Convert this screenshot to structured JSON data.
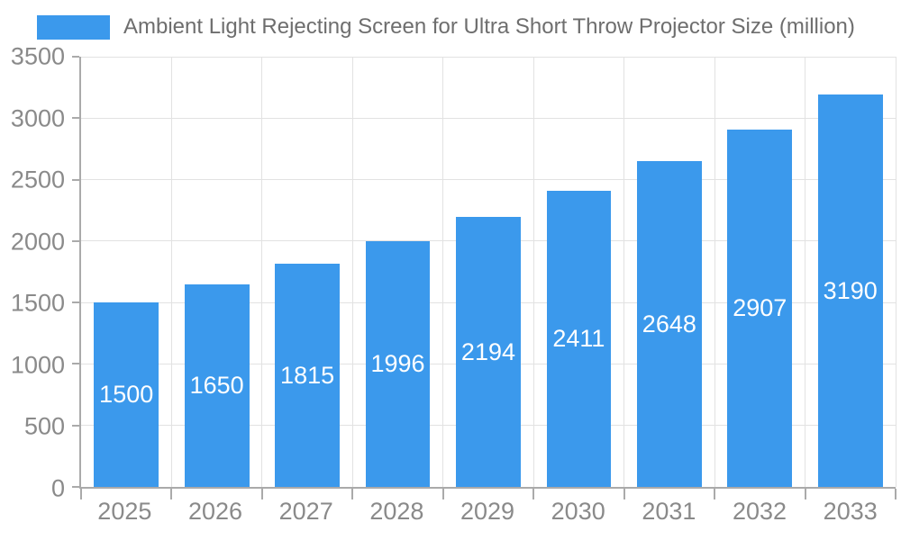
{
  "chart_data": {
    "type": "bar",
    "title": "Ambient Light Rejecting Screen for Ultra Short Throw Projector Size (million)",
    "categories": [
      "2025",
      "2026",
      "2027",
      "2028",
      "2029",
      "2030",
      "2031",
      "2032",
      "2033"
    ],
    "values": [
      1500,
      1650,
      1815,
      1996,
      2194,
      2411,
      2648,
      2907,
      3190
    ],
    "series_name": "Ambient Light Rejecting Screen for Ultra Short Throw Projector Size (million)",
    "xlabel": "",
    "ylabel": "",
    "ylim": [
      0,
      3500
    ],
    "yticks": [
      0,
      500,
      1000,
      1500,
      2000,
      2500,
      3000,
      3500
    ],
    "grid": true,
    "legend_position": "top-left",
    "value_labels_shown": true,
    "colors": {
      "bar": "#3B99EC",
      "value_label": "#FFFFFF",
      "tick_label": "#8A8A8A",
      "title": "#6E6E6E",
      "grid": "#E2E2E2",
      "axis_line": "#AAAAAA",
      "background": "#FFFFFF"
    }
  }
}
